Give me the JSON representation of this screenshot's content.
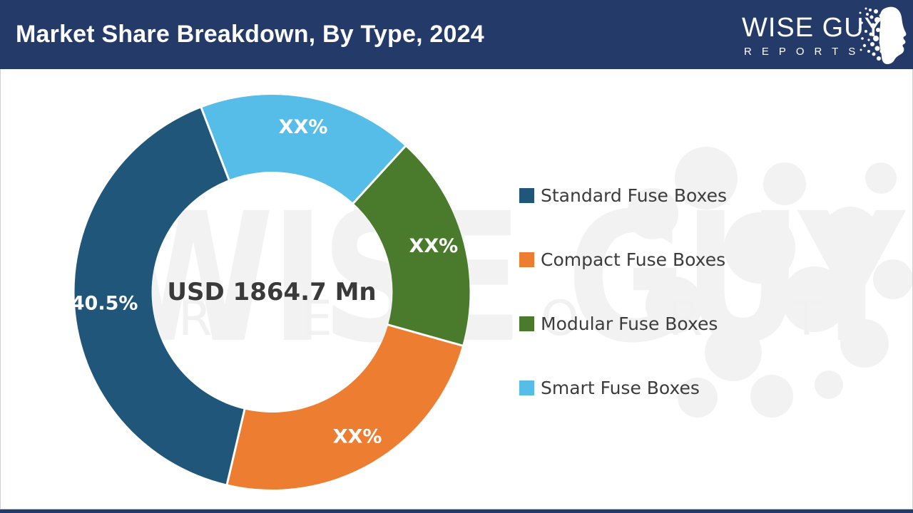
{
  "header": {
    "title": "Market Share Breakdown, By Type, 2024",
    "logo": {
      "name": "WISE GUY",
      "sub": "REPORTS"
    }
  },
  "chart_data": {
    "type": "pie",
    "subtype": "donut",
    "title": "Market Share Breakdown, By Type, 2024",
    "center_label": "USD 1864.7 Mn",
    "start_angle_deg": 111,
    "direction": "counterclockwise",
    "donut_hole_ratio": 0.61,
    "legend_position": "right",
    "segments": [
      {
        "label": "Standard Fuse Boxes",
        "value_pct": 40.5,
        "display_label": "40.5%",
        "color": "#1F567A"
      },
      {
        "label": "Compact Fuse Boxes",
        "value_pct": 24.3,
        "display_label": "XX%",
        "color": "#ED7D31"
      },
      {
        "label": "Modular Fuse Boxes",
        "value_pct": 17.6,
        "display_label": "XX%",
        "color": "#4A7A2B"
      },
      {
        "label": "Smart Fuse Boxes",
        "value_pct": 17.6,
        "display_label": "XX%",
        "color": "#55BDE8"
      }
    ]
  },
  "watermark": {
    "line1": "WISE GUY",
    "line2": "R E P O R T S"
  },
  "colors": {
    "header_bg": "#243A68",
    "footer_bar": "#243A68",
    "title_text": "#FFFFFF",
    "center_text": "#3A3A3A",
    "legend_text": "#3C3C3C",
    "pct_label_text": "#FFFFFF",
    "watermark": "#F2F2F2"
  }
}
